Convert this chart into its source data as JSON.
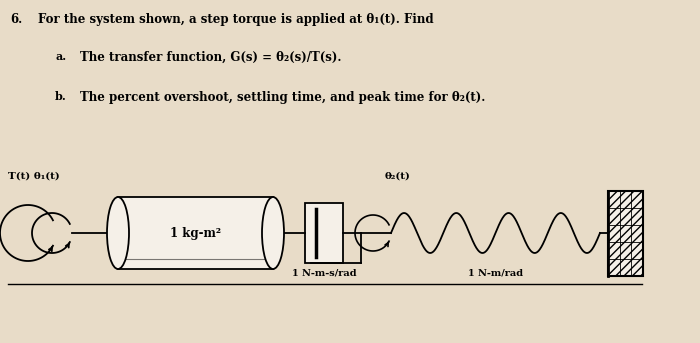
{
  "bg_color": "#e8dcc8",
  "question_number": "6.",
  "main_text": "For the system shown, a step torque is applied at θ₁(t). Find",
  "part_a_label": "a.",
  "part_a_text": "The transfer function, G(s) = θ₂(s)/T(s).",
  "part_b_label": "b.",
  "part_b_text": "The percent overshoot, settling time, and peak time for θ₂(t).",
  "label_T": "T(t) θ₁(t)",
  "label_theta2": "θ₂(t)",
  "label_inertia": "1 kg-m²",
  "label_damper": "1 N-m-s/rad",
  "label_spring": "1 N-m/rad"
}
